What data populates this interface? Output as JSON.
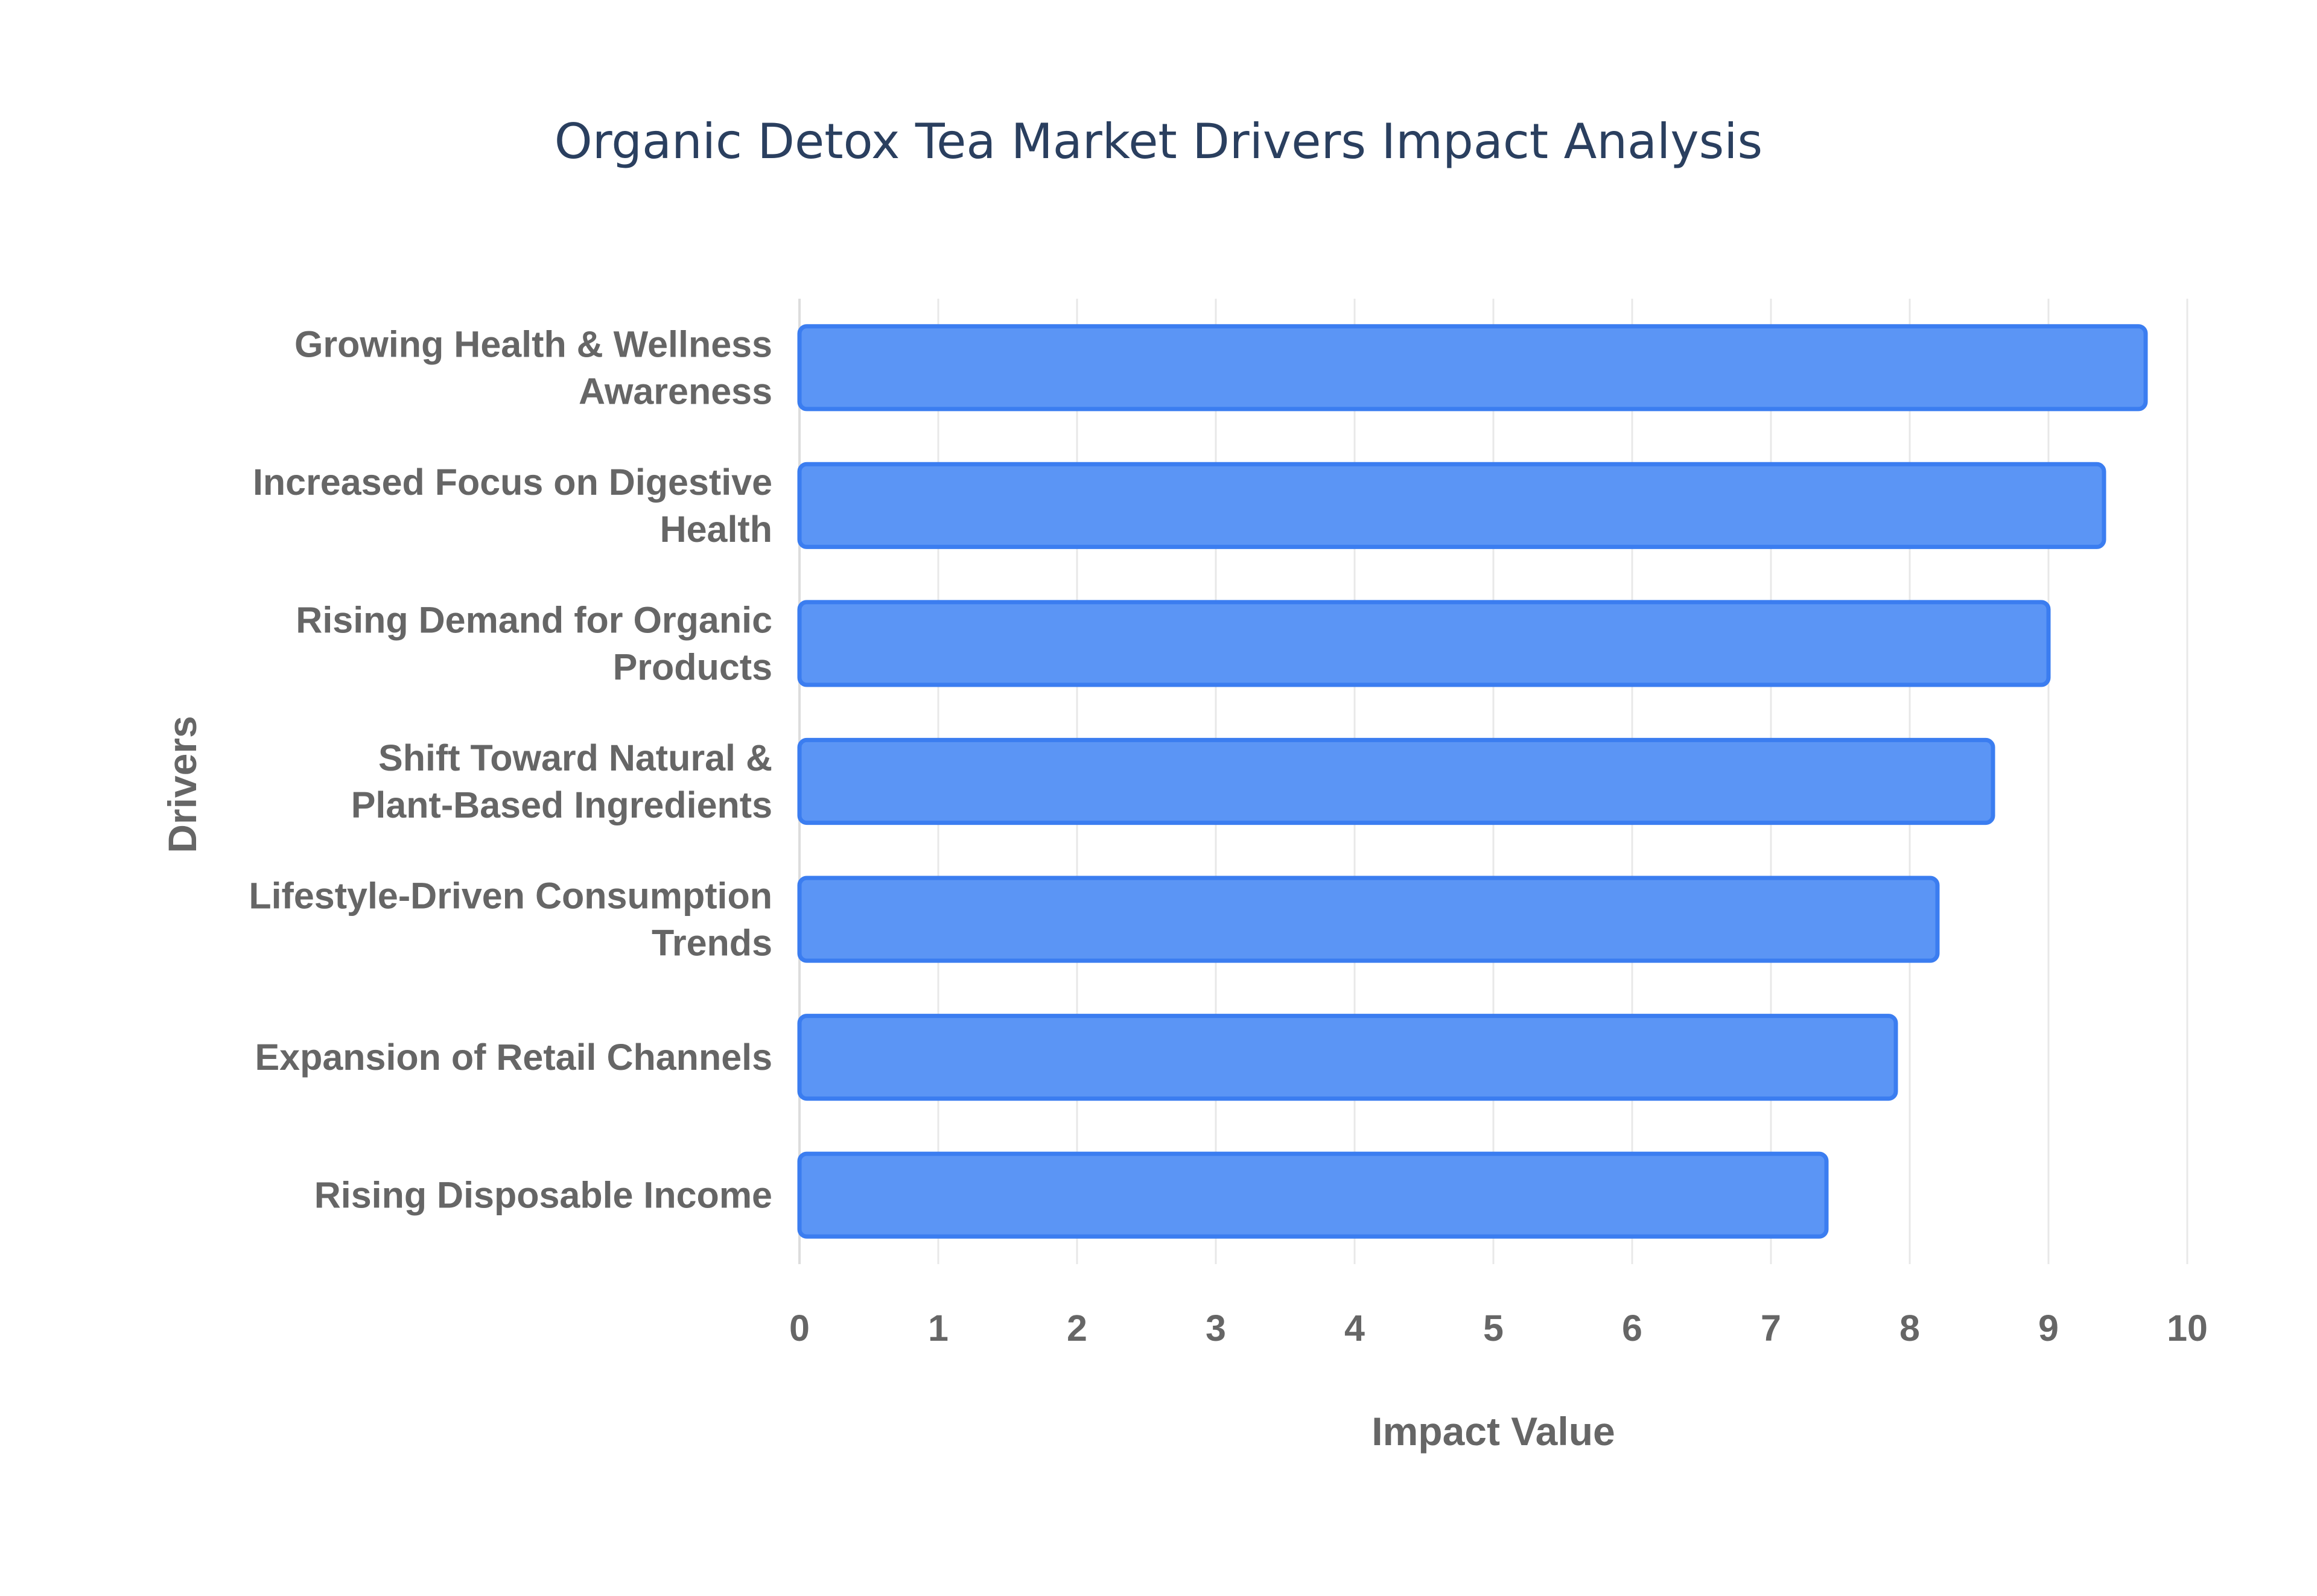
{
  "chart_data": {
    "type": "bar",
    "orientation": "horizontal",
    "title": "Organic Detox Tea Market Drivers Impact Analysis",
    "xlabel": "Impact Value",
    "ylabel": "Drivers",
    "xlim": [
      0,
      10
    ],
    "xticks": [
      "0",
      "1",
      "2",
      "3",
      "4",
      "5",
      "6",
      "7",
      "8",
      "9",
      "10"
    ],
    "grid": true,
    "categories": [
      [
        "Growing Health & Wellness",
        "Awareness"
      ],
      [
        "Increased Focus on Digestive",
        "Health"
      ],
      [
        "Rising Demand for Organic",
        "Products"
      ],
      [
        "Shift Toward Natural &",
        "Plant-Based Ingredients"
      ],
      [
        "Lifestyle-Driven Consumption",
        "Trends"
      ],
      [
        "Expansion of Retail Channels"
      ],
      [
        "Rising Disposable Income"
      ]
    ],
    "values": [
      9.7,
      9.4,
      9.0,
      8.6,
      8.2,
      7.9,
      7.4
    ],
    "colors": {
      "bar_fill": "#5b95f5",
      "bar_stroke": "#3b7df0",
      "title": "#2a3f5f",
      "text": "#666666",
      "grid": "#e8e8e8"
    }
  }
}
